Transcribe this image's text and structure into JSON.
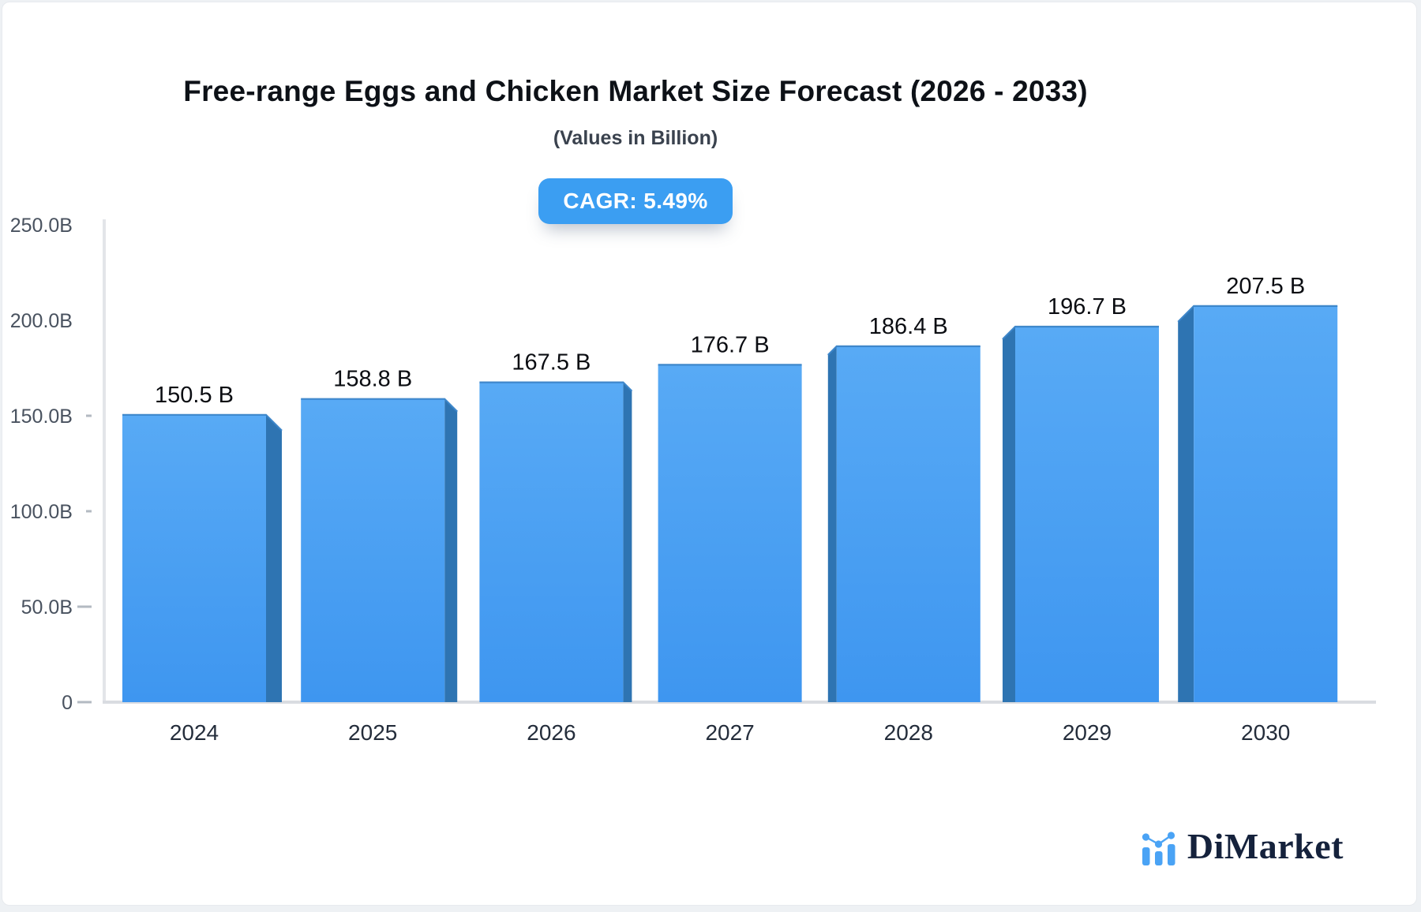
{
  "page": {
    "background": "#eef1f4",
    "card_background": "#ffffff"
  },
  "header": {
    "title": "Free-range Eggs and Chicken Market Size Forecast (2026 - 2033)",
    "subtitle": "(Values in Billion)"
  },
  "badge": {
    "label": "CAGR: 5.49%",
    "background": "#3b9ef2",
    "text_color": "#ffffff"
  },
  "chart_data": {
    "type": "bar",
    "title": "Free-range Eggs and Chicken Market Size Forecast (2026 - 2033)",
    "subtitle": "(Values in Billion)",
    "xlabel": "",
    "ylabel": "",
    "unit": "Billion",
    "categories": [
      "2024",
      "2025",
      "2026",
      "2027",
      "2028",
      "2029",
      "2030"
    ],
    "values": [
      150.5,
      158.8,
      167.5,
      176.7,
      186.4,
      196.7,
      207.5
    ],
    "value_labels": [
      "150.5 B",
      "158.8 B",
      "167.5 B",
      "176.7 B",
      "186.4 B",
      "196.7 B",
      "207.5 B"
    ],
    "y_ticks": [
      {
        "label": "250.0B",
        "value": 250
      },
      {
        "label": "200.0B",
        "value": 200
      },
      {
        "label": "150.0B",
        "value": 150
      },
      {
        "label": "100.0B",
        "value": 100
      },
      {
        "label": "50.0B",
        "value": 50
      },
      {
        "label": "0",
        "value": 0
      }
    ],
    "ylim": [
      0,
      250
    ],
    "grid": false,
    "legend": "none",
    "style": "3d-perspective-bars",
    "colors": {
      "bar_top": "#58aaf5",
      "bar_bottom": "#3e96f0",
      "bar_side": "#2e74b2",
      "bar_top_edge": "#3a84c8",
      "axis_line": "#e3e5e9",
      "baseline": "#d9dce1",
      "tick": "#b3bac2",
      "y_tick_text": "#49525f",
      "x_tick_text": "#242d3b",
      "value_label_text": "#0b0d12"
    }
  },
  "logo": {
    "text": "DiMarket",
    "icon": "mini-bar-chart-icon",
    "icon_color": "#4aa3f5",
    "text_color": "#15223c"
  }
}
